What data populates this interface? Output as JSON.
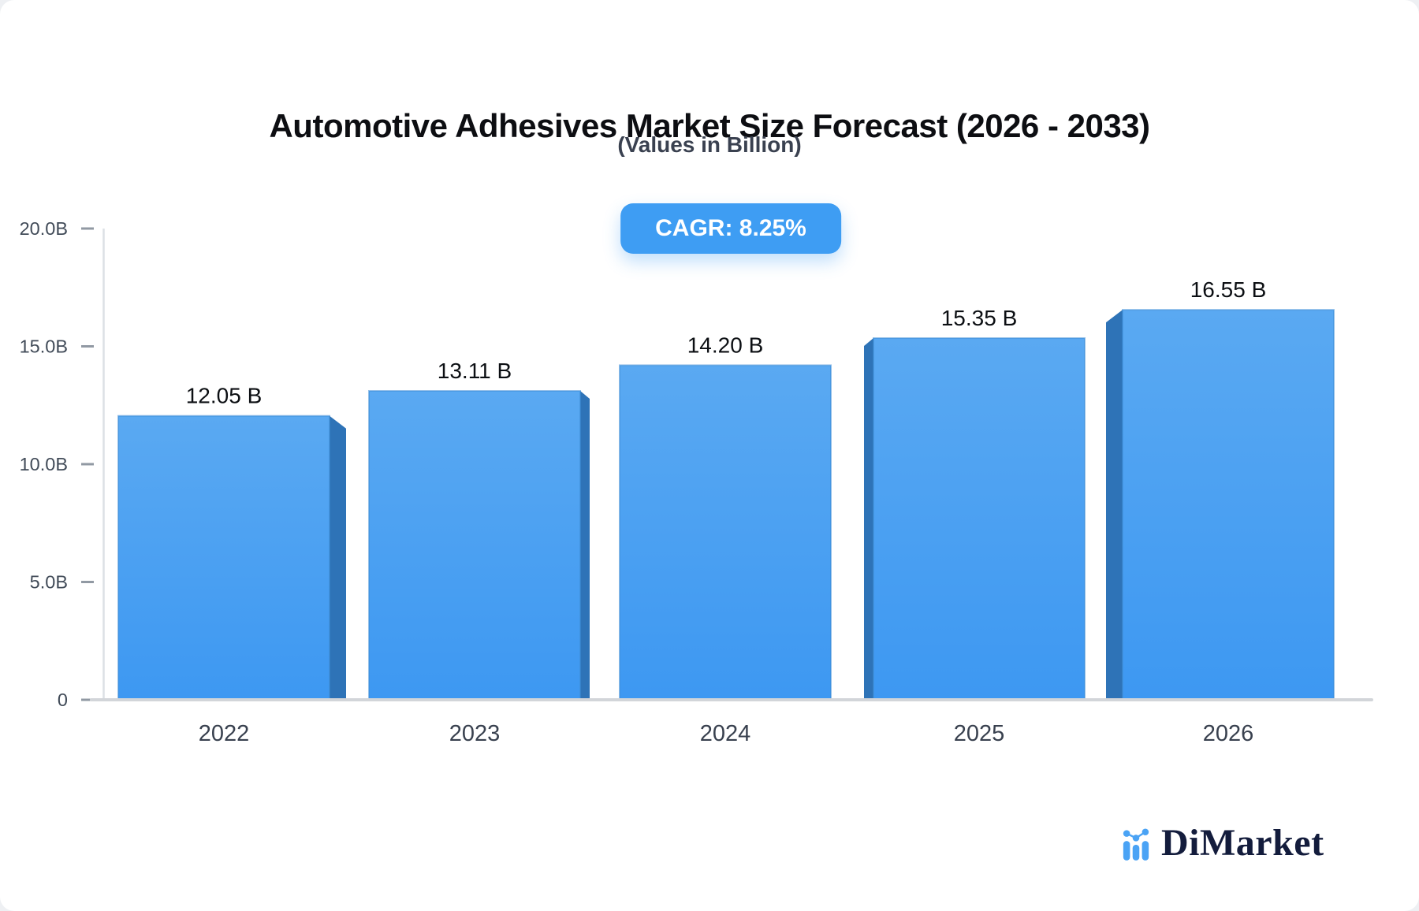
{
  "header": {
    "title": "Automotive Adhesives Market Size Forecast (2026 - 2033)",
    "subtitle": "(Values in Billion)",
    "cagr_label": "CAGR: 8.25%"
  },
  "chart_data": {
    "type": "bar",
    "title": "Automotive Adhesives Market Size Forecast (2026 - 2033)",
    "subtitle": "(Values in Billion)",
    "cagr": "8.25%",
    "categories": [
      "2022",
      "2023",
      "2024",
      "2025",
      "2026"
    ],
    "values": [
      12.05,
      13.11,
      14.2,
      15.35,
      16.55
    ],
    "bar_labels": [
      "12.05 B",
      "13.11 B",
      "14.20 B",
      "15.35 B",
      "16.55 B"
    ],
    "xlabel": "",
    "ylabel": "",
    "ylim": [
      0,
      20
    ],
    "ytick_values": [
      0,
      5,
      10,
      15,
      20
    ],
    "ytick_labels": [
      "0",
      "5.0B",
      "10.0B",
      "15.0B",
      "20.0B"
    ],
    "grid": false,
    "legend": false,
    "style": "3d-perspective-bars",
    "colors": {
      "bar_face_top": "#5AA9F2",
      "bar_face_bottom": "#3D98F2",
      "bar_edge": "#3E8CD6",
      "bar_side": "#2E73B7",
      "axis_line": "#DCE0E5",
      "baseline": "#D2D5D9",
      "tick": "#9199A3",
      "tick_label": "#414B58",
      "value_label": "#0C0F13",
      "year_label": "#39414F",
      "badge": "#3E9DF3"
    }
  },
  "branding": {
    "name": "DiMarket",
    "icon": "mini-bar-line-chart-icon",
    "icon_color": "#4AA3F5",
    "text_color": "#131C3C"
  }
}
